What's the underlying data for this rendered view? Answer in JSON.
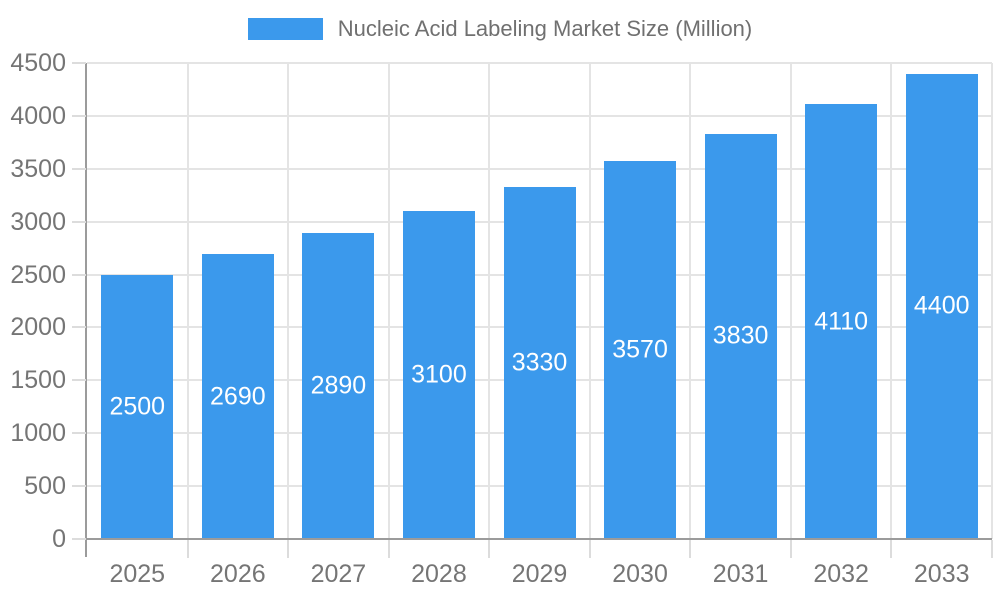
{
  "legend": {
    "label": "Nucleic Acid Labeling Market Size (Million)"
  },
  "chart_data": {
    "type": "bar",
    "title": "Nucleic Acid Labeling Market Size (Million)",
    "categories": [
      "2025",
      "2026",
      "2027",
      "2028",
      "2029",
      "2030",
      "2031",
      "2032",
      "2033"
    ],
    "values": [
      2500,
      2690,
      2890,
      3100,
      3330,
      3570,
      3830,
      4110,
      4400
    ],
    "series": [
      {
        "name": "Nucleic Acid Labeling Market Size (Million)",
        "values": [
          2500,
          2690,
          2890,
          3100,
          3330,
          3570,
          3830,
          4110,
          4400
        ]
      }
    ],
    "xlabel": "",
    "ylabel": "",
    "ylim": [
      0,
      4500
    ],
    "yticks": [
      0,
      500,
      1000,
      1500,
      2000,
      2500,
      3000,
      3500,
      4000,
      4500
    ],
    "grid": true,
    "legend_position": "top",
    "value_labels": "inside-center",
    "colors": {
      "bar": "#3B99EC",
      "axis_text": "#757575",
      "legend_text": "#707070",
      "grid_line": "#e4e4e4",
      "axis_line": "#9b9b9b",
      "tick_line": "#dcdcdc",
      "value_label": "#ffffff",
      "background": "#ffffff"
    }
  }
}
